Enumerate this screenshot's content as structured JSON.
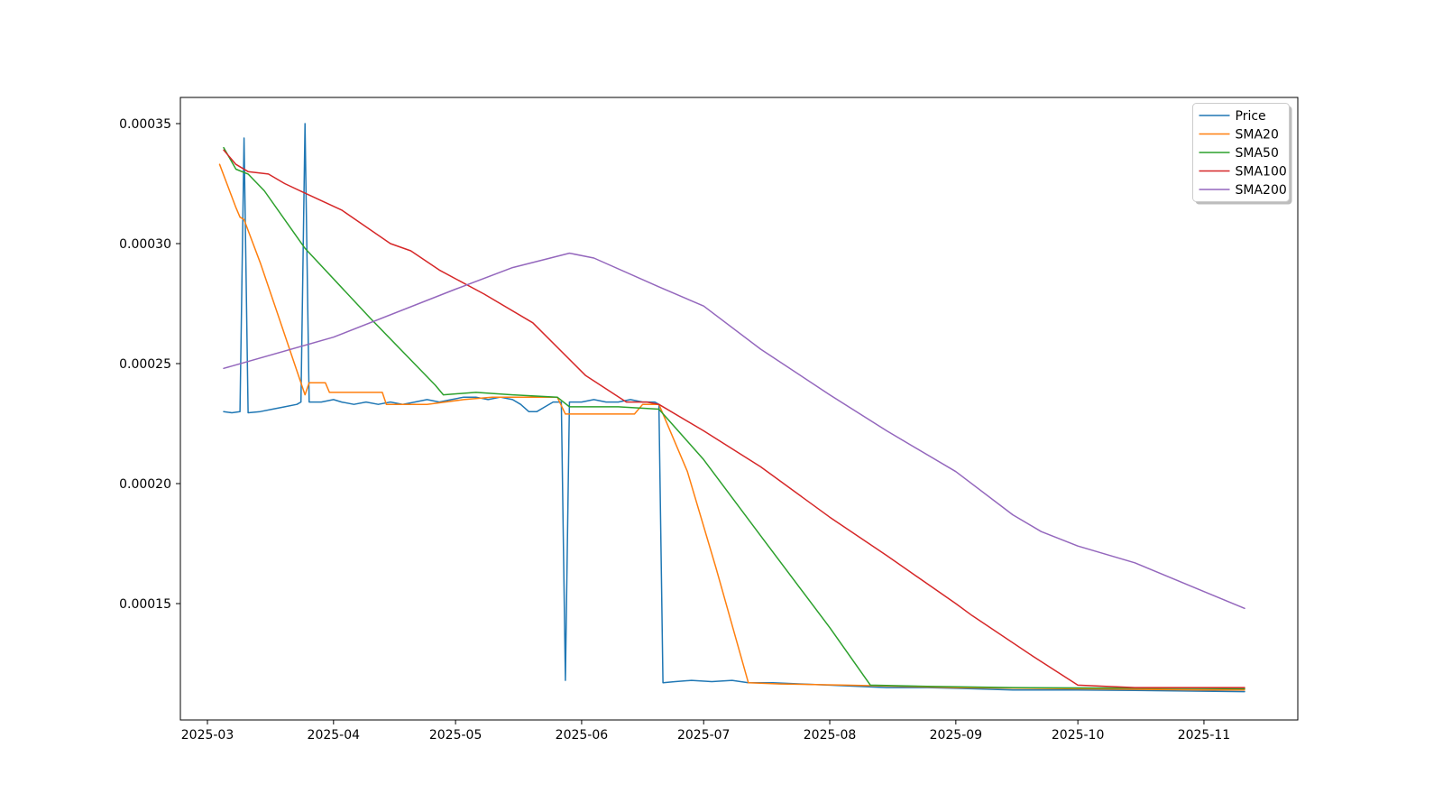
{
  "figure": {
    "background": "#ffffff",
    "spine_color": "#000000"
  },
  "chart_data": {
    "type": "line",
    "title": "",
    "xlabel": "",
    "ylabel": "",
    "grid": false,
    "legend": {
      "position": "upper right",
      "entries": [
        "Price",
        "SMA20",
        "SMA50",
        "SMA100",
        "SMA200"
      ]
    },
    "x_ticks": [
      {
        "label": "2025-03",
        "date": "2025-03-01"
      },
      {
        "label": "2025-04",
        "date": "2025-04-01"
      },
      {
        "label": "2025-05",
        "date": "2025-05-01"
      },
      {
        "label": "2025-06",
        "date": "2025-06-01"
      },
      {
        "label": "2025-07",
        "date": "2025-07-01"
      },
      {
        "label": "2025-08",
        "date": "2025-08-01"
      },
      {
        "label": "2025-09",
        "date": "2025-09-01"
      },
      {
        "label": "2025-10",
        "date": "2025-10-01"
      },
      {
        "label": "2025-11",
        "date": "2025-11-01"
      }
    ],
    "y_ticks": [
      {
        "label": "0.00015",
        "value": 0.00015
      },
      {
        "label": "0.00020",
        "value": 0.0002
      },
      {
        "label": "0.00025",
        "value": 0.00025
      },
      {
        "label": "0.00030",
        "value": 0.0003
      },
      {
        "label": "0.00035",
        "value": 0.00035
      }
    ],
    "x_range_dates": [
      "2025-02-22",
      "2025-11-24"
    ],
    "y_range": [
      0.0001015,
      0.000361
    ],
    "series": [
      {
        "name": "Price",
        "color": "#1f77b4",
        "points": [
          [
            "2025-03-05",
            0.00023
          ],
          [
            "2025-03-07",
            0.0002295
          ],
          [
            "2025-03-09",
            0.00023
          ],
          [
            "2025-03-10",
            0.000344
          ],
          [
            "2025-03-11",
            0.0002295
          ],
          [
            "2025-03-14",
            0.00023
          ],
          [
            "2025-03-17",
            0.000231
          ],
          [
            "2025-03-20",
            0.000232
          ],
          [
            "2025-03-23",
            0.000233
          ],
          [
            "2025-03-24",
            0.000234
          ],
          [
            "2025-03-25",
            0.00035
          ],
          [
            "2025-03-26",
            0.000234
          ],
          [
            "2025-03-29",
            0.000234
          ],
          [
            "2025-04-01",
            0.000235
          ],
          [
            "2025-04-03",
            0.000234
          ],
          [
            "2025-04-06",
            0.000233
          ],
          [
            "2025-04-09",
            0.000234
          ],
          [
            "2025-04-12",
            0.000233
          ],
          [
            "2025-04-15",
            0.000234
          ],
          [
            "2025-04-18",
            0.000233
          ],
          [
            "2025-04-21",
            0.000234
          ],
          [
            "2025-04-24",
            0.000235
          ],
          [
            "2025-04-27",
            0.000234
          ],
          [
            "2025-04-30",
            0.000235
          ],
          [
            "2025-05-03",
            0.000236
          ],
          [
            "2025-05-06",
            0.000236
          ],
          [
            "2025-05-09",
            0.000235
          ],
          [
            "2025-05-12",
            0.000236
          ],
          [
            "2025-05-15",
            0.000235
          ],
          [
            "2025-05-17",
            0.000233
          ],
          [
            "2025-05-19",
            0.00023
          ],
          [
            "2025-05-21",
            0.00023
          ],
          [
            "2025-05-23",
            0.000232
          ],
          [
            "2025-05-25",
            0.000234
          ],
          [
            "2025-05-27",
            0.000234
          ],
          [
            "2025-05-28",
            0.000118
          ],
          [
            "2025-05-29",
            0.000234
          ],
          [
            "2025-06-01",
            0.000234
          ],
          [
            "2025-06-04",
            0.000235
          ],
          [
            "2025-06-07",
            0.000234
          ],
          [
            "2025-06-10",
            0.000234
          ],
          [
            "2025-06-13",
            0.000235
          ],
          [
            "2025-06-16",
            0.000234
          ],
          [
            "2025-06-19",
            0.000234
          ],
          [
            "2025-06-20",
            0.000233
          ],
          [
            "2025-06-21",
            0.000117
          ],
          [
            "2025-06-24",
            0.0001175
          ],
          [
            "2025-06-28",
            0.000118
          ],
          [
            "2025-07-03",
            0.0001175
          ],
          [
            "2025-07-08",
            0.000118
          ],
          [
            "2025-07-12",
            0.000117
          ],
          [
            "2025-07-18",
            0.000117
          ],
          [
            "2025-07-25",
            0.0001165
          ],
          [
            "2025-08-01",
            0.000116
          ],
          [
            "2025-08-08",
            0.0001155
          ],
          [
            "2025-08-15",
            0.000115
          ],
          [
            "2025-08-25",
            0.000115
          ],
          [
            "2025-09-05",
            0.0001145
          ],
          [
            "2025-09-15",
            0.000114
          ],
          [
            "2025-10-01",
            0.000114
          ],
          [
            "2025-10-15",
            0.0001138
          ],
          [
            "2025-11-01",
            0.0001135
          ],
          [
            "2025-11-11",
            0.0001133
          ]
        ]
      },
      {
        "name": "SMA20",
        "color": "#ff7f0e",
        "points": [
          [
            "2025-03-04",
            0.000333
          ],
          [
            "2025-03-08",
            0.000315
          ],
          [
            "2025-03-09",
            0.000311
          ],
          [
            "2025-03-10",
            0.00031
          ],
          [
            "2025-03-14",
            0.000292
          ],
          [
            "2025-03-18",
            0.000272
          ],
          [
            "2025-03-22",
            0.000252
          ],
          [
            "2025-03-25",
            0.000237
          ],
          [
            "2025-03-26",
            0.000242
          ],
          [
            "2025-03-30",
            0.000242
          ],
          [
            "2025-03-31",
            0.000238
          ],
          [
            "2025-04-13",
            0.000238
          ],
          [
            "2025-04-14",
            0.000233
          ],
          [
            "2025-04-24",
            0.000233
          ],
          [
            "2025-05-03",
            0.000235
          ],
          [
            "2025-05-10",
            0.000236
          ],
          [
            "2025-05-26",
            0.000236
          ],
          [
            "2025-05-28",
            0.000229
          ],
          [
            "2025-06-14",
            0.000229
          ],
          [
            "2025-06-16",
            0.000233
          ],
          [
            "2025-06-20",
            0.000233
          ],
          [
            "2025-06-27",
            0.000205
          ],
          [
            "2025-07-04",
            0.000165
          ],
          [
            "2025-07-12",
            0.000117
          ],
          [
            "2025-07-20",
            0.0001165
          ],
          [
            "2025-08-05",
            0.000116
          ],
          [
            "2025-09-01",
            0.000115
          ],
          [
            "2025-10-01",
            0.0001145
          ],
          [
            "2025-11-01",
            0.000114
          ],
          [
            "2025-11-11",
            0.000114
          ]
        ]
      },
      {
        "name": "SMA50",
        "color": "#2ca02c",
        "points": [
          [
            "2025-03-05",
            0.00034
          ],
          [
            "2025-03-08",
            0.000331
          ],
          [
            "2025-03-11",
            0.000329
          ],
          [
            "2025-03-15",
            0.000322
          ],
          [
            "2025-03-25",
            0.000298
          ],
          [
            "2025-04-10",
            0.000269
          ],
          [
            "2025-04-26",
            0.000241
          ],
          [
            "2025-04-28",
            0.000237
          ],
          [
            "2025-05-06",
            0.000238
          ],
          [
            "2025-05-15",
            0.000237
          ],
          [
            "2025-05-26",
            0.000236
          ],
          [
            "2025-05-29",
            0.000232
          ],
          [
            "2025-06-10",
            0.000232
          ],
          [
            "2025-06-20",
            0.000231
          ],
          [
            "2025-07-01",
            0.00021
          ],
          [
            "2025-07-16",
            0.000176
          ],
          [
            "2025-08-01",
            0.00014
          ],
          [
            "2025-08-11",
            0.000116
          ],
          [
            "2025-08-25",
            0.0001155
          ],
          [
            "2025-09-15",
            0.000115
          ],
          [
            "2025-10-10",
            0.0001148
          ],
          [
            "2025-11-11",
            0.0001145
          ]
        ]
      },
      {
        "name": "SMA100",
        "color": "#d62728",
        "points": [
          [
            "2025-03-05",
            0.000339
          ],
          [
            "2025-03-08",
            0.000333
          ],
          [
            "2025-03-11",
            0.00033
          ],
          [
            "2025-03-16",
            0.000329
          ],
          [
            "2025-03-20",
            0.000325
          ],
          [
            "2025-03-25",
            0.000321
          ],
          [
            "2025-04-03",
            0.000314
          ],
          [
            "2025-04-15",
            0.0003
          ],
          [
            "2025-04-20",
            0.000297
          ],
          [
            "2025-04-27",
            0.000289
          ],
          [
            "2025-05-08",
            0.000279
          ],
          [
            "2025-05-20",
            0.000267
          ],
          [
            "2025-06-02",
            0.000245
          ],
          [
            "2025-06-12",
            0.000234
          ],
          [
            "2025-06-17",
            0.000234
          ],
          [
            "2025-06-20",
            0.000233
          ],
          [
            "2025-07-01",
            0.000222
          ],
          [
            "2025-07-15",
            0.000207
          ],
          [
            "2025-08-01",
            0.000186
          ],
          [
            "2025-08-15",
            0.00017
          ],
          [
            "2025-09-01",
            0.00015
          ],
          [
            "2025-09-05",
            0.000145
          ],
          [
            "2025-09-20",
            0.000128
          ],
          [
            "2025-10-01",
            0.000116
          ],
          [
            "2025-10-15",
            0.000115
          ],
          [
            "2025-11-11",
            0.000115
          ]
        ]
      },
      {
        "name": "SMA200",
        "color": "#9467bd",
        "points": [
          [
            "2025-03-05",
            0.000248
          ],
          [
            "2025-04-01",
            0.000261
          ],
          [
            "2025-05-01",
            0.000281
          ],
          [
            "2025-05-15",
            0.00029
          ],
          [
            "2025-05-29",
            0.000296
          ],
          [
            "2025-06-04",
            0.000294
          ],
          [
            "2025-06-20",
            0.000282
          ],
          [
            "2025-07-01",
            0.000274
          ],
          [
            "2025-07-15",
            0.000256
          ],
          [
            "2025-08-01",
            0.000237
          ],
          [
            "2025-08-15",
            0.000222
          ],
          [
            "2025-09-01",
            0.000205
          ],
          [
            "2025-09-15",
            0.000187
          ],
          [
            "2025-09-22",
            0.00018
          ],
          [
            "2025-10-01",
            0.000174
          ],
          [
            "2025-10-15",
            0.000167
          ],
          [
            "2025-11-01",
            0.000155
          ],
          [
            "2025-11-11",
            0.000148
          ]
        ]
      }
    ]
  }
}
